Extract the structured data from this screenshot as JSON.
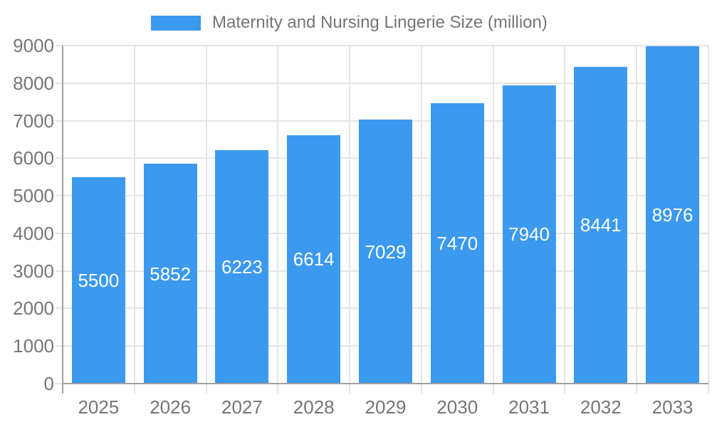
{
  "chart_data": {
    "type": "bar",
    "title": "Maternity and Nursing Lingerie Size (million)",
    "categories": [
      "2025",
      "2026",
      "2027",
      "2028",
      "2029",
      "2030",
      "2031",
      "2032",
      "2033"
    ],
    "values": [
      5500,
      5852,
      6223,
      6614,
      7029,
      7470,
      7940,
      8441,
      8976
    ],
    "xlabel": "",
    "ylabel": "",
    "ylim": [
      0,
      9000
    ],
    "ytick_interval": 1000,
    "ytick_labels": [
      "0",
      "1000",
      "2000",
      "3000",
      "4000",
      "5000",
      "6000",
      "7000",
      "8000",
      "9000"
    ],
    "grid": "both",
    "legend_position": "top-center",
    "value_labels": "inside-center",
    "bar_color": "#3B99EF",
    "value_label_color": "#FFFFFF",
    "axis_text_color": "#757575",
    "axis_line_color": "#9E9E9E",
    "gridline_color": "#E4E4E4"
  }
}
